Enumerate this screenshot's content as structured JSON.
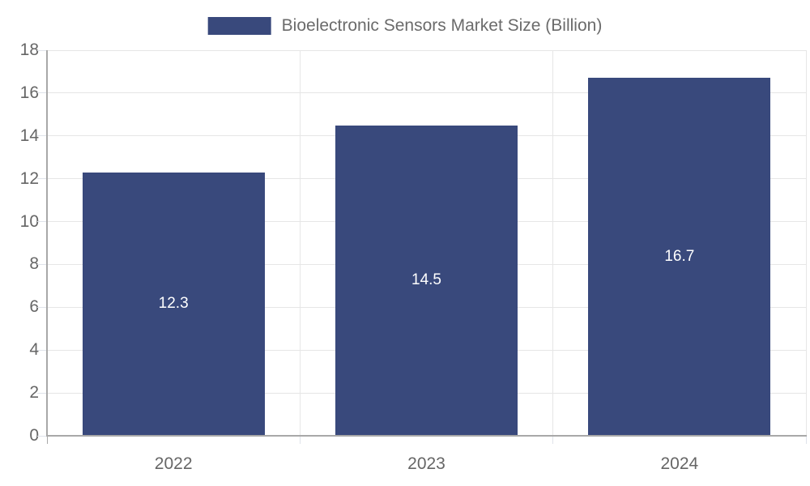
{
  "legend": {
    "label": "Bioelectronic Sensors Market Size (Billion)"
  },
  "chart_data": {
    "type": "bar",
    "title": "",
    "categories": [
      "2022",
      "2023",
      "2024"
    ],
    "series": [
      {
        "name": "Bioelectronic Sensors Market Size (Billion)",
        "values": [
          12.3,
          14.5,
          16.7
        ]
      }
    ],
    "value_labels": [
      "12.3",
      "14.5",
      "16.7"
    ],
    "xlabel": "",
    "ylabel": "",
    "ylim": [
      0,
      18
    ],
    "y_tick_interval": 2,
    "y_ticks": [
      0,
      2,
      4,
      6,
      8,
      10,
      12,
      14,
      16,
      18
    ],
    "grid": true,
    "legend_position": "top",
    "colors": {
      "bar": "#39497C",
      "gridline": "#e6e6e6",
      "axis_line": "#a8a8a8",
      "tick": "#dfe3ea",
      "axis_label": "#666666",
      "legend_label": "#6b6b6b",
      "value_label": "#ffffff",
      "background": "#ffffff"
    }
  }
}
